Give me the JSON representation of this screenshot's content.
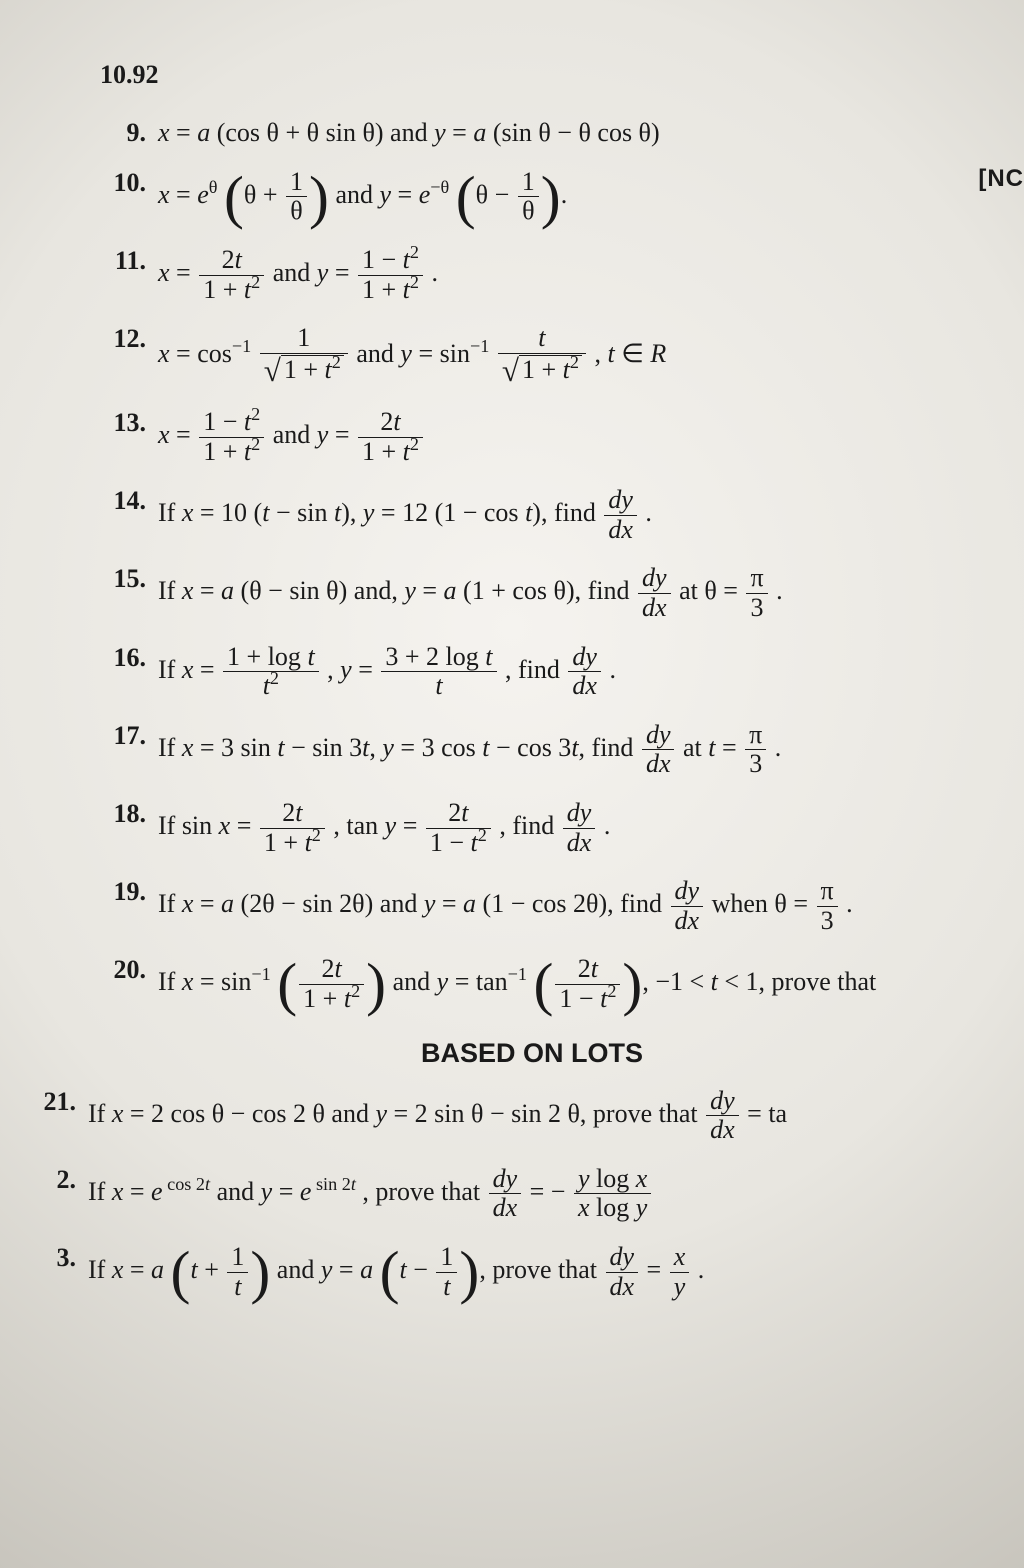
{
  "background_color": "#efede8",
  "text_color": "#1a1a1a",
  "font_family_body": "Georgia, serif",
  "font_family_heading": "Arial, sans-serif",
  "section": "10.92",
  "margin_note": "[NC",
  "heading": "BASED ON LOTS",
  "problems": [
    {
      "n": "9.",
      "html": "<span class='italic'>x</span> = <span class='italic'>a</span> (cos θ + θ sin θ) and <span class='italic'>y</span> = <span class='italic'>a</span> (sin θ − θ cos θ)"
    },
    {
      "n": "10.",
      "html": "<span class='italic'>x</span> = <span class='italic'>e</span><sup>θ</sup> <span class='bigp'>(</span>θ + <span class='frac'><span class='num'>1</span><span class='den'>θ</span></span><span class='bigp'>)</span>  and  <span class='italic'>y</span> = <span class='italic'>e</span><sup>−θ</sup> <span class='bigp'>(</span>θ − <span class='frac'><span class='num'>1</span><span class='den'>θ</span></span><span class='bigp'>)</span>."
    },
    {
      "n": "11.",
      "html": "<span class='italic'>x</span> = <span class='frac'><span class='num'>2<span class='italic'>t</span></span><span class='den'>1 + <span class='italic'>t</span><sup>2</sup></span></span> and <span class='italic'>y</span> = <span class='frac'><span class='num'>1 − <span class='italic'>t</span><sup>2</sup></span><span class='den'>1 + <span class='italic'>t</span><sup>2</sup></span></span> ."
    },
    {
      "n": "12.",
      "html": "<span class='italic'>x</span> = cos<sup>−1</sup> <span class='frac'><span class='num'>1</span><span class='den'><span class='sqrt'><span class='rad'>1 + <span class='italic'>t</span><sup>2</sup></span></span></span></span> and <span class='italic'>y</span> = sin<sup>−1</sup> <span class='frac'><span class='num'><span class='italic'>t</span></span><span class='den'><span class='sqrt'><span class='rad'>1 + <span class='italic'>t</span><sup>2</sup></span></span></span></span> , <span class='italic'>t</span> ∈ <span class='italic'>R</span>"
    },
    {
      "n": "13.",
      "html": "<span class='italic'>x</span> = <span class='frac'><span class='num'>1 − <span class='italic'>t</span><sup>2</sup></span><span class='den'>1 + <span class='italic'>t</span><sup>2</sup></span></span> and <span class='italic'>y</span> = <span class='frac'><span class='num'>2<span class='italic'>t</span></span><span class='den'>1 + <span class='italic'>t</span><sup>2</sup></span></span>"
    },
    {
      "n": "14.",
      "html": "If <span class='italic'>x</span> = 10 (<span class='italic'>t</span> − sin <span class='italic'>t</span>), <span class='italic'>y</span> = 12 (1 − cos <span class='italic'>t</span>), find <span class='frac'><span class='num'><span class='italic'>dy</span></span><span class='den'><span class='italic'>dx</span></span></span> ."
    },
    {
      "n": "15.",
      "html": "If <span class='italic'>x</span> = <span class='italic'>a</span> (θ − sin θ)  and,  <span class='italic'>y</span> = <span class='italic'>a</span> (1 + cos θ), find <span class='frac'><span class='num'><span class='italic'>dy</span></span><span class='den'><span class='italic'>dx</span></span></span> at θ = <span class='frac'><span class='num'>π</span><span class='den'>3</span></span> ."
    },
    {
      "n": "16.",
      "html": "If <span class='italic'>x</span> = <span class='frac'><span class='num'>1 + log <span class='italic'>t</span></span><span class='den'><span class='italic'>t</span><sup>2</sup></span></span> , <span class='italic'>y</span> = <span class='frac'><span class='num'>3 + 2 log <span class='italic'>t</span></span><span class='den'><span class='italic'>t</span></span></span> , find <span class='frac'><span class='num'><span class='italic'>dy</span></span><span class='den'><span class='italic'>dx</span></span></span> ."
    },
    {
      "n": "17.",
      "html": "If <span class='italic'>x</span> = 3 sin <span class='italic'>t</span> − sin 3<span class='italic'>t</span>, <span class='italic'>y</span> = 3 cos <span class='italic'>t</span> − cos 3<span class='italic'>t</span>, find <span class='frac'><span class='num'><span class='italic'>dy</span></span><span class='den'><span class='italic'>dx</span></span></span> at <span class='italic'>t</span> = <span class='frac'><span class='num'>π</span><span class='den'>3</span></span> ."
    },
    {
      "n": "18.",
      "html": "If sin <span class='italic'>x</span> = <span class='frac'><span class='num'>2<span class='italic'>t</span></span><span class='den'>1 + <span class='italic'>t</span><sup>2</sup></span></span> , tan <span class='italic'>y</span> = <span class='frac'><span class='num'>2<span class='italic'>t</span></span><span class='den'>1 − <span class='italic'>t</span><sup>2</sup></span></span> , find <span class='frac'><span class='num'><span class='italic'>dy</span></span><span class='den'><span class='italic'>dx</span></span></span> ."
    },
    {
      "n": "19.",
      "html": "If <span class='italic'>x</span> = <span class='italic'>a</span> (2θ − sin 2θ) and <span class='italic'>y</span> = <span class='italic'>a</span> (1 − cos 2θ), find <span class='frac'><span class='num'><span class='italic'>dy</span></span><span class='den'><span class='italic'>dx</span></span></span> when θ = <span class='frac'><span class='num'>π</span><span class='den'>3</span></span> ."
    },
    {
      "n": "20.",
      "html": "If <span class='italic'>x</span> = sin<sup>−1</sup> <span class='bigp'>(</span><span class='frac'><span class='num'>2<span class='italic'>t</span></span><span class='den'>1 + <span class='italic'>t</span><sup>2</sup></span></span><span class='bigp'>)</span> and <span class='italic'>y</span> = tan<sup>−1</sup> <span class='bigp'>(</span><span class='frac'><span class='num'>2<span class='italic'>t</span></span><span class='den'>1 − <span class='italic'>t</span><sup>2</sup></span></span><span class='bigp'>)</span>, −1 &lt; <span class='italic'>t</span> &lt; 1, prove that"
    }
  ],
  "problems_lots": [
    {
      "n": "21.",
      "cls": "q21",
      "html": "If <span class='italic'>x</span> = 2 cos θ − cos 2 θ and <span class='italic'>y</span> = 2 sin θ − sin 2 θ, prove that <span class='frac'><span class='num'><span class='italic'>dy</span></span><span class='den'><span class='italic'>dx</span></span></span> = ta"
    },
    {
      "n": "2.",
      "cls": "q22",
      "html": "If <span class='italic'>x</span> = <span class='italic'>e</span><sup> cos 2<span class='italic'>t</span></sup> and <span class='italic'>y</span> = <span class='italic'>e</span><sup> sin 2<span class='italic'>t</span></sup> , prove that <span class='frac'><span class='num'><span class='italic'>dy</span></span><span class='den'><span class='italic'>dx</span></span></span> = − <span class='frac'><span class='num'><span class='italic'>y</span> log <span class='italic'>x</span></span><span class='den'><span class='italic'>x</span> log <span class='italic'>y</span></span></span>"
    },
    {
      "n": "3.",
      "cls": "q23",
      "html": "If <span class='italic'>x</span> = <span class='italic'>a</span> <span class='bigp'>(</span><span class='italic'>t</span> + <span class='frac'><span class='num'>1</span><span class='den'><span class='italic'>t</span></span></span><span class='bigp'>)</span> and <span class='italic'>y</span> = <span class='italic'>a</span> <span class='bigp'>(</span><span class='italic'>t</span> − <span class='frac'><span class='num'>1</span><span class='den'><span class='italic'>t</span></span></span><span class='bigp'>)</span>, prove that <span class='frac'><span class='num'><span class='italic'>dy</span></span><span class='den'><span class='italic'>dx</span></span></span> = <span class='frac'><span class='num'><span class='italic'>x</span></span><span class='den'><span class='italic'>y</span></span></span> ."
    }
  ]
}
